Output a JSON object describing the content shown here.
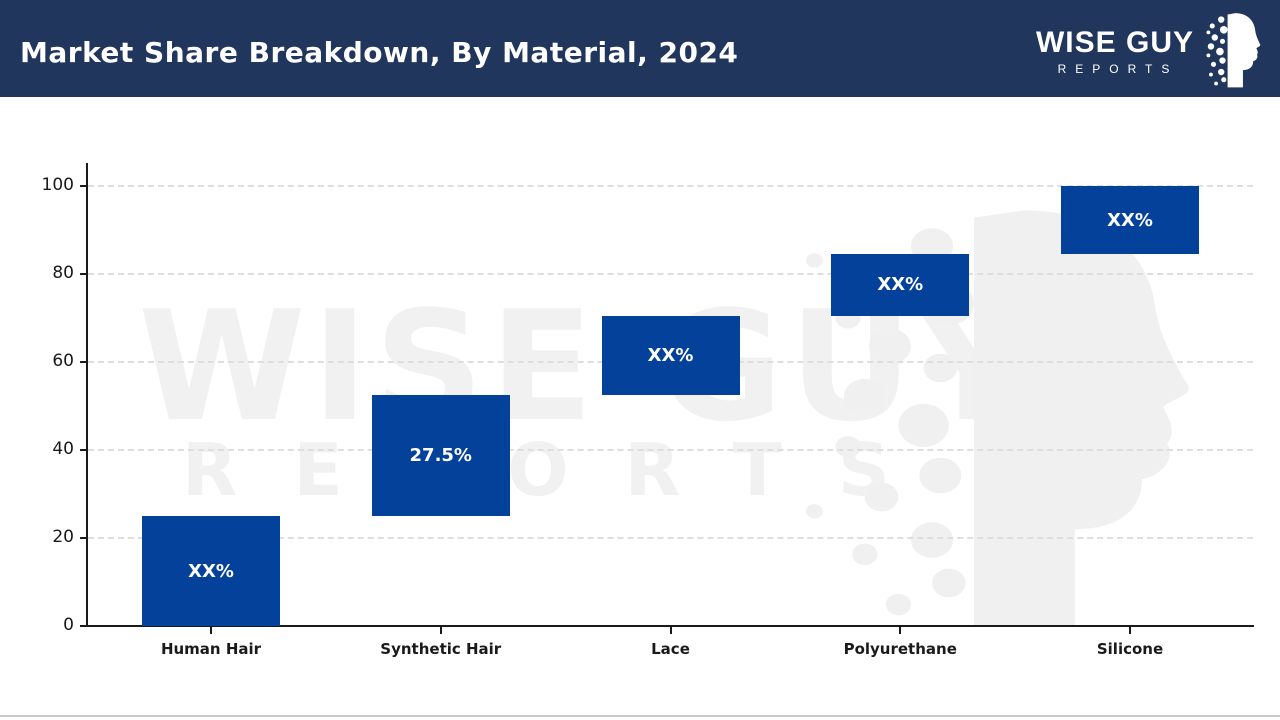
{
  "header": {
    "title": "Market Share Breakdown, By Material, 2024",
    "logo_line1": "WISE GUY",
    "logo_line2": "REPORTS"
  },
  "watermark": {
    "line1": "WISE GUY",
    "line2": "REPORTS"
  },
  "colors": {
    "header_bg": "#21365c",
    "bar": "#04419b",
    "bar_label": "#ffffff",
    "grid": "#dedede",
    "axis": "#1a1a1a",
    "watermark": "#f1f1f1"
  },
  "chart_data": {
    "type": "bar",
    "subtype": "floating-waterfall",
    "title": "Market Share Breakdown, By Material, 2024",
    "xlabel": "",
    "ylabel": "",
    "ylim": [
      0,
      100
    ],
    "yticks": [
      0,
      20,
      40,
      60,
      80,
      100
    ],
    "grid": "horizontal-dashed",
    "legend": "none",
    "categories": [
      "Human Hair",
      "Synthetic Hair",
      "Lace",
      "Polyurethane",
      "Silicone"
    ],
    "segments": [
      {
        "category": "Human Hair",
        "start": 0,
        "end": 25,
        "label": "XX%"
      },
      {
        "category": "Synthetic Hair",
        "start": 25,
        "end": 52.5,
        "label": "27.5%"
      },
      {
        "category": "Lace",
        "start": 52.5,
        "end": 70.5,
        "label": "XX%"
      },
      {
        "category": "Polyurethane",
        "start": 70.5,
        "end": 84.5,
        "label": "XX%"
      },
      {
        "category": "Silicone",
        "start": 84.5,
        "end": 100,
        "label": "XX%"
      }
    ]
  }
}
